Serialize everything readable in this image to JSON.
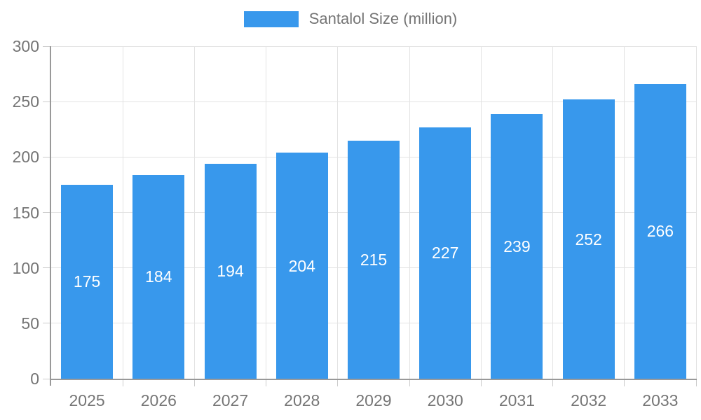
{
  "chart_data": {
    "type": "bar",
    "title": "",
    "legend": "Santalol Size (million)",
    "legend_position": "top",
    "categories": [
      "2025",
      "2026",
      "2027",
      "2028",
      "2029",
      "2030",
      "2031",
      "2032",
      "2033"
    ],
    "values": [
      175,
      184,
      194,
      204,
      215,
      227,
      239,
      252,
      266
    ],
    "value_labels": [
      "175",
      "184",
      "194",
      "204",
      "215",
      "227",
      "239",
      "252",
      "266"
    ],
    "xlabel": "",
    "ylabel": "",
    "ylim": [
      0,
      300
    ],
    "yticks": [
      0,
      50,
      100,
      150,
      200,
      250,
      300
    ],
    "grid": true,
    "colors": {
      "bar": "#3898ec",
      "axis": "#999999",
      "grid": "#e3e3e3",
      "tick": "#cccccc",
      "text": "#757575",
      "value_label": "#ffffff"
    }
  }
}
